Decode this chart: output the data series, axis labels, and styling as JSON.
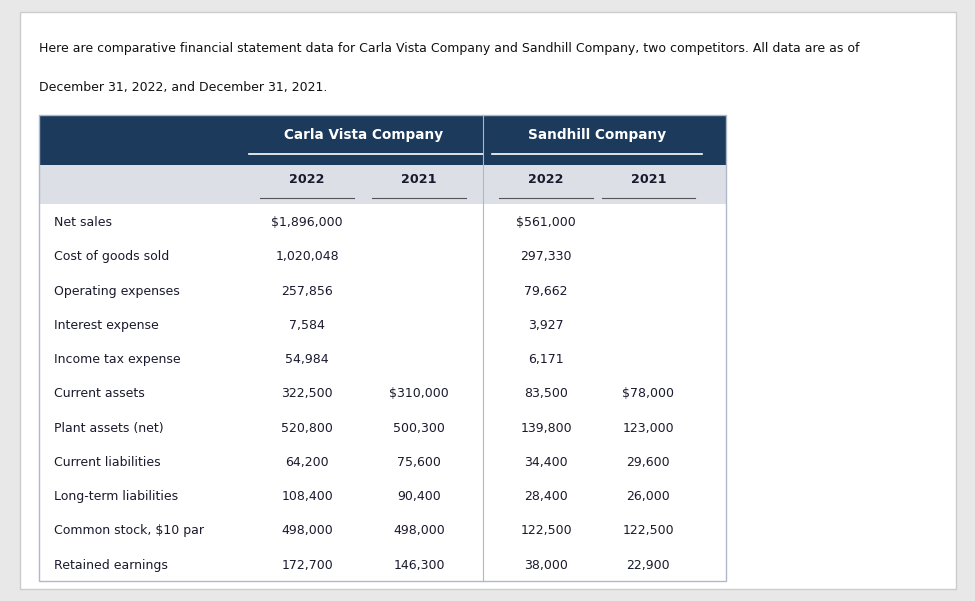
{
  "intro_text_line1": "Here are comparative financial statement data for Carla Vista Company and Sandhill Company, two competitors. All data are as of",
  "intro_text_line2": "December 31, 2022, and December 31, 2021.",
  "header_bg_color": "#1b3a5c",
  "header_text_color": "#ffffff",
  "subheader_bg_color": "#dce0e6",
  "col_header_1": "Carla Vista Company",
  "col_header_2": "Sandhill Company",
  "year_headers": [
    "2022",
    "2021",
    "2022",
    "2021"
  ],
  "rows": [
    {
      "label": "Net sales",
      "cv2022": "$1,896,000",
      "cv2021": "",
      "sh2022": "$561,000",
      "sh2021": ""
    },
    {
      "label": "Cost of goods sold",
      "cv2022": "1,020,048",
      "cv2021": "",
      "sh2022": "297,330",
      "sh2021": ""
    },
    {
      "label": "Operating expenses",
      "cv2022": "257,856",
      "cv2021": "",
      "sh2022": "79,662",
      "sh2021": ""
    },
    {
      "label": "Interest expense",
      "cv2022": "7,584",
      "cv2021": "",
      "sh2022": "3,927",
      "sh2021": ""
    },
    {
      "label": "Income tax expense",
      "cv2022": "54,984",
      "cv2021": "",
      "sh2022": "6,171",
      "sh2021": ""
    },
    {
      "label": "Current assets",
      "cv2022": "322,500",
      "cv2021": "$310,000",
      "sh2022": "83,500",
      "sh2021": "$78,000"
    },
    {
      "label": "Plant assets (net)",
      "cv2022": "520,800",
      "cv2021": "500,300",
      "sh2022": "139,800",
      "sh2021": "123,000"
    },
    {
      "label": "Current liabilities",
      "cv2022": "64,200",
      "cv2021": "75,600",
      "sh2022": "34,400",
      "sh2021": "29,600"
    },
    {
      "label": "Long-term liabilities",
      "cv2022": "108,400",
      "cv2021": "90,400",
      "sh2022": "28,400",
      "sh2021": "26,000"
    },
    {
      "label": "Common stock, $10 par",
      "cv2022": "498,000",
      "cv2021": "498,000",
      "sh2022": "122,500",
      "sh2021": "122,500"
    },
    {
      "label": "Retained earnings",
      "cv2022": "172,700",
      "cv2021": "146,300",
      "sh2022": "38,000",
      "sh2021": "22,900"
    }
  ],
  "fig_bg": "#f0f0f0",
  "table_bg": "#ffffff",
  "row_bg_even": "#ffffff",
  "row_bg_odd": "#ffffff",
  "text_color": "#1a1a2e",
  "border_color": "#b0b8c8"
}
